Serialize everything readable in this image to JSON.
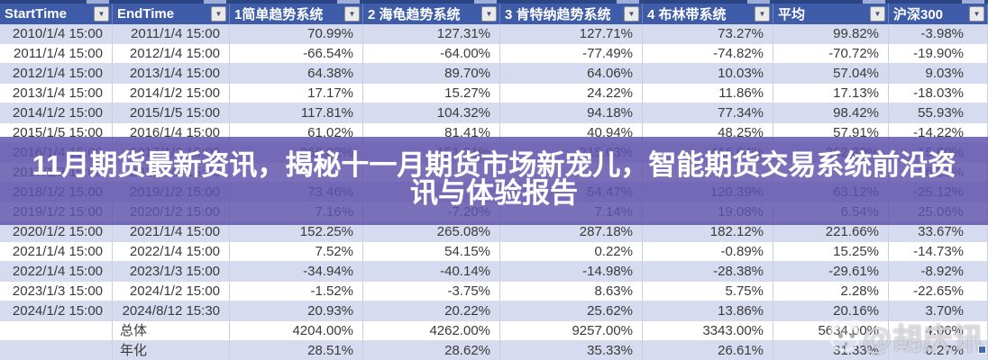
{
  "banner": {
    "line1": "11月期货最新资讯，揭秘十一月期货市场新宠儿，智能期货交易系统前沿资",
    "line2": "讯与体验报告",
    "full_text": "11月期货最新资讯，揭秘十一月期货市场新宠儿，智能期货交易系统前沿资讯与体验报告"
  },
  "watermark": {
    "handle": "@胡庆讯",
    "emoji": "panda-face"
  },
  "icons": {
    "filter_dropdown": "▼"
  },
  "table": {
    "columns": [
      {
        "key": "starttime",
        "label": "StartTime"
      },
      {
        "key": "endtime",
        "label": "EndTime"
      },
      {
        "key": "system1",
        "label": "1简单趋势系统"
      },
      {
        "key": "system2",
        "label": "2 海龟趋势系统"
      },
      {
        "key": "system3",
        "label": "3 肯特纳趋势系统"
      },
      {
        "key": "system4",
        "label": "4 布林带系统"
      },
      {
        "key": "average",
        "label": "平均"
      },
      {
        "key": "csi300",
        "label": "沪深300"
      }
    ],
    "rows": [
      [
        "2010/1/4 15:00",
        "2011/1/4 15:00",
        "70.99%",
        "127.31%",
        "127.71%",
        "73.27%",
        "99.82%",
        "-3.98%"
      ],
      [
        "2011/1/4 15:00",
        "2012/1/4 15:00",
        "-66.54%",
        "-64.00%",
        "-77.49%",
        "-74.82%",
        "-70.72%",
        "-19.90%"
      ],
      [
        "2012/1/4 15:00",
        "2013/1/4 15:00",
        "64.38%",
        "89.70%",
        "64.06%",
        "10.03%",
        "57.04%",
        "9.03%"
      ],
      [
        "2013/1/4 15:00",
        "2014/1/2 15:00",
        "17.17%",
        "15.27%",
        "24.22%",
        "11.86%",
        "17.13%",
        "-18.03%"
      ],
      [
        "2014/1/2 15:00",
        "2015/1/5 15:00",
        "117.81%",
        "104.32%",
        "94.18%",
        "77.34%",
        "98.42%",
        "55.93%"
      ],
      [
        "2015/1/5 15:00",
        "2016/1/4 15:00",
        "61.02%",
        "81.41%",
        "40.94%",
        "48.25%",
        "57.91%",
        "-14.22%"
      ],
      [
        "2016/1/4 15:00",
        "2017/1/3 15:00",
        "266.82%",
        "151.31%",
        "215.03%",
        "416.04%",
        "262.30%",
        "15.00%"
      ],
      [
        "2017/1/3 15:00",
        "2018/1/2 15:00",
        "",
        "",
        "",
        "",
        "",
        "26.21%"
      ],
      [
        "2018/1/2 15:00",
        "2019/1/2 15:00",
        "73.46%",
        "",
        "54.47%",
        "120.39%",
        "63.12%",
        "-25.12%"
      ],
      [
        "2019/1/2 15:00",
        "2020/1/2 15:00",
        "7.16%",
        "-7.20%",
        "7.14%",
        "19.08%",
        "6.54%",
        "25.06%"
      ],
      [
        "2020/1/2 15:00",
        "2021/1/4 15:00",
        "152.25%",
        "265.08%",
        "287.18%",
        "182.12%",
        "221.66%",
        "33.67%"
      ],
      [
        "2021/1/4 15:00",
        "2022/1/4 15:00",
        "7.52%",
        "54.15%",
        "0.22%",
        "-0.89%",
        "15.25%",
        "-14.73%"
      ],
      [
        "2022/1/4 15:00",
        "2023/1/3 15:00",
        "-34.94%",
        "-40.14%",
        "-14.98%",
        "-28.38%",
        "-29.61%",
        "-8.92%"
      ],
      [
        "2023/1/3 15:00",
        "2024/1/2 15:00",
        "-1.52%",
        "-3.75%",
        "8.63%",
        "5.75%",
        "2.28%",
        "-22.65%"
      ],
      [
        "2024/1/2 15:00",
        "2024/8/12 15:30",
        "20.93%",
        "20.22%",
        "25.62%",
        "13.86%",
        "20.16%",
        "3.70%"
      ],
      [
        "",
        "总体",
        "4204.00%",
        "4262.00%",
        "9257.00%",
        "3343.00%",
        "5634.00%",
        "4.06%"
      ],
      [
        "",
        "年化",
        "28.51%",
        "28.62%",
        "35.33%",
        "26.61%",
        "31.33%",
        "0.27%"
      ]
    ]
  },
  "colors": {
    "header_bg": "#3E5CA8",
    "top_strip": "#2B4484",
    "banded_row": "#D6DBEF",
    "row_bg": "#FFFFFF",
    "grid_line": "#C9CFE2",
    "cell_text": "#3A3A3A",
    "overlay_purple": "rgba(97,83,172,0.84)",
    "banner_text": "#FFFFFF",
    "watermark_text": "rgba(248,248,250,0.6)",
    "fill_handle": "#4569B5"
  }
}
